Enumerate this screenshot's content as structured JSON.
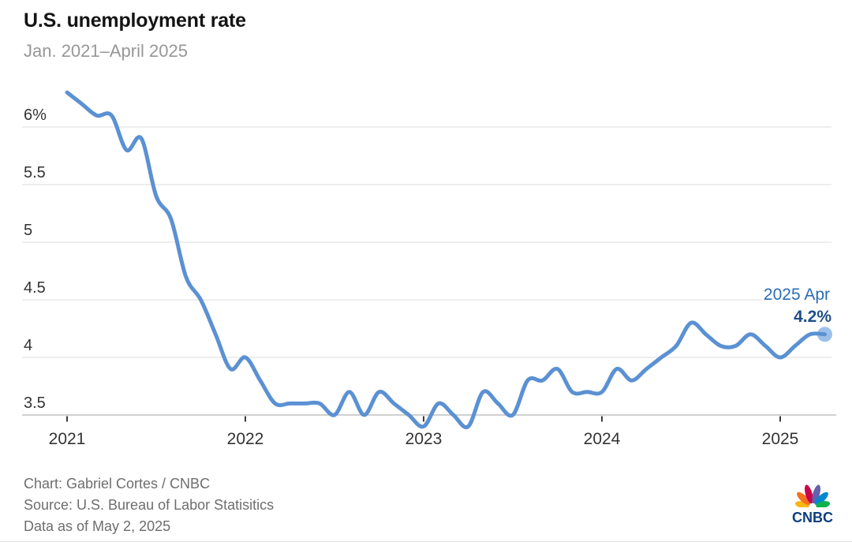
{
  "title": "U.S. unemployment rate",
  "subtitle": "Jan. 2021–April 2025",
  "annotation": {
    "label": "2025 Apr",
    "value": "4.2%"
  },
  "footer": {
    "credit": "Chart: Gabriel Cortes / CNBC",
    "source": "Source: U.S. Bureau of Labor Statisitics",
    "as_of": "Data as of May 2, 2025"
  },
  "logo": {
    "wordmark": "CNBC",
    "icon": "nbc-peacock-icon",
    "feather_colors": [
      "#FCB711",
      "#F37021",
      "#CC004C",
      "#6460AA",
      "#0089D0",
      "#0DB14B"
    ],
    "wordmark_color": "#0e3e7e"
  },
  "colors": {
    "line": "#5b91d3",
    "end_dot": "#9dc0ea",
    "annotation_label": "#2b6cb4",
    "annotation_value": "#1d4e89",
    "gridline": "#dcdcdc",
    "axis_line": "#c0c0c0",
    "tick": "#3c3c3c",
    "axis_label": "#333333",
    "title": "#141414",
    "subtitle": "#979797",
    "footer_text": "#6e6e6e"
  },
  "chart_data": {
    "type": "line",
    "title": "U.S. unemployment rate",
    "subtitle": "Jan. 2021–April 2025",
    "unit": "percent",
    "grid": "horizontal",
    "legend": "none",
    "x_tick_labels": [
      "2021",
      "2022",
      "2023",
      "2024",
      "2025"
    ],
    "y_tick_labels": [
      "6%",
      "5.5",
      "5",
      "4.5",
      "4",
      "3.5"
    ],
    "y_tick_values": [
      6,
      5.5,
      5,
      4.5,
      4,
      3.5
    ],
    "y_gridline_range": [
      3.5,
      6.0
    ],
    "latest_point": {
      "month": "2025 Apr",
      "value": 4.2,
      "marker": "light-blue-dot"
    },
    "months": [
      "2021 Jan",
      "2021 Feb",
      "2021 Mar",
      "2021 Apr",
      "2021 May",
      "2021 Jun",
      "2021 Jul",
      "2021 Aug",
      "2021 Sep",
      "2021 Oct",
      "2021 Nov",
      "2021 Dec",
      "2022 Jan",
      "2022 Feb",
      "2022 Mar",
      "2022 Apr",
      "2022 May",
      "2022 Jun",
      "2022 Jul",
      "2022 Aug",
      "2022 Sep",
      "2022 Oct",
      "2022 Nov",
      "2022 Dec",
      "2023 Jan",
      "2023 Feb",
      "2023 Mar",
      "2023 Apr",
      "2023 May",
      "2023 Jun",
      "2023 Jul",
      "2023 Aug",
      "2023 Sep",
      "2023 Oct",
      "2023 Nov",
      "2023 Dec",
      "2024 Jan",
      "2024 Feb",
      "2024 Mar",
      "2024 Apr",
      "2024 May",
      "2024 Jun",
      "2024 Jul",
      "2024 Aug",
      "2024 Sep",
      "2024 Oct",
      "2024 Nov",
      "2024 Dec",
      "2025 Jan",
      "2025 Feb",
      "2025 Mar",
      "2025 Apr"
    ],
    "values": [
      6.3,
      6.2,
      6.1,
      6.1,
      5.8,
      5.9,
      5.4,
      5.2,
      4.7,
      4.5,
      4.2,
      3.9,
      4.0,
      3.8,
      3.6,
      3.6,
      3.6,
      3.6,
      3.5,
      3.7,
      3.5,
      3.7,
      3.6,
      3.5,
      3.4,
      3.6,
      3.5,
      3.4,
      3.7,
      3.6,
      3.5,
      3.8,
      3.8,
      3.9,
      3.7,
      3.7,
      3.7,
      3.9,
      3.8,
      3.9,
      4.0,
      4.1,
      4.3,
      4.2,
      4.1,
      4.1,
      4.2,
      4.1,
      4.0,
      4.1,
      4.2,
      4.2
    ]
  }
}
